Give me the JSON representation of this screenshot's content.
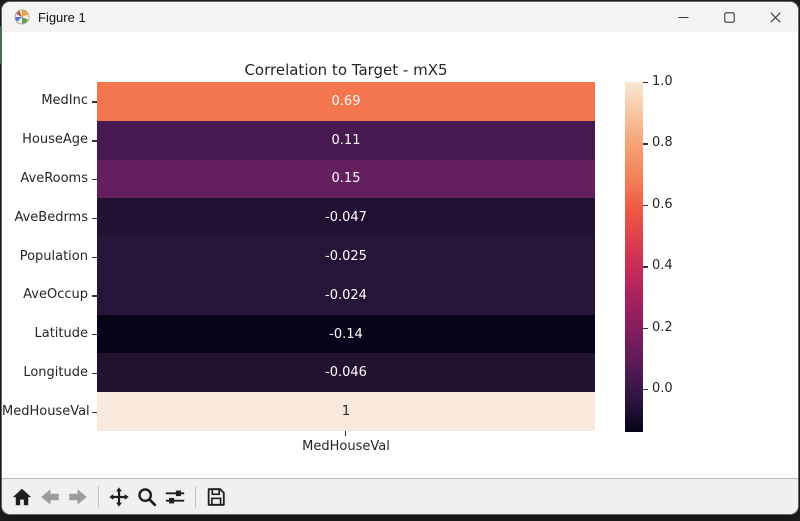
{
  "window": {
    "title": "Figure 1",
    "icon": "matplotlib-logo",
    "controls": [
      {
        "name": "minimize"
      },
      {
        "name": "maximize"
      },
      {
        "name": "close"
      }
    ]
  },
  "chart_data": {
    "type": "heatmap",
    "title": "Correlation to Target - mX5",
    "x_categories": [
      "MedHouseVal"
    ],
    "y_categories": [
      "MedInc",
      "HouseAge",
      "AveRooms",
      "AveBedrms",
      "Population",
      "AveOccup",
      "Latitude",
      "Longitude",
      "MedHouseVal"
    ],
    "values": [
      [
        0.69
      ],
      [
        0.11
      ],
      [
        0.15
      ],
      [
        -0.047
      ],
      [
        -0.025
      ],
      [
        -0.024
      ],
      [
        -0.14
      ],
      [
        -0.046
      ],
      [
        1
      ]
    ],
    "value_labels": [
      "0.69",
      "0.11",
      "0.15",
      "-0.047",
      "-0.025",
      "-0.024",
      "-0.14",
      "-0.046",
      "1"
    ],
    "colormap": "rocket",
    "vmin": -0.14,
    "vmax": 1.0,
    "cell_colors": [
      "#f3764f",
      "#461a51",
      "#641f5e",
      "#211233",
      "#261538",
      "#261538",
      "#060419",
      "#231330",
      "#f9e9dc"
    ],
    "cell_text_colors": [
      "#ffffff",
      "#ffffff",
      "#ffffff",
      "#ffffff",
      "#ffffff",
      "#ffffff",
      "#ffffff",
      "#ffffff",
      "#262626"
    ],
    "colorbar": {
      "ticks": [
        "1.0",
        "0.8",
        "0.6",
        "0.4",
        "0.2",
        "0.0"
      ],
      "gradient_top_to_bottom": [
        "#f9e8d4",
        "#f7c5a0",
        "#f5a173",
        "#f4815a",
        "#ee5a42",
        "#dd3d4e",
        "#c32a5a",
        "#a21f5e",
        "#7c1d5e",
        "#551a56",
        "#2c1440",
        "#03051a"
      ]
    },
    "legend_position": "right",
    "grid": false
  },
  "toolbar": {
    "buttons": [
      {
        "name": "home",
        "enabled": true
      },
      {
        "name": "back",
        "enabled": false
      },
      {
        "name": "forward",
        "enabled": false
      },
      {
        "name": "pan",
        "enabled": true
      },
      {
        "name": "zoom",
        "enabled": true
      },
      {
        "name": "configure-subplots",
        "enabled": true
      },
      {
        "name": "save",
        "enabled": true
      }
    ]
  }
}
